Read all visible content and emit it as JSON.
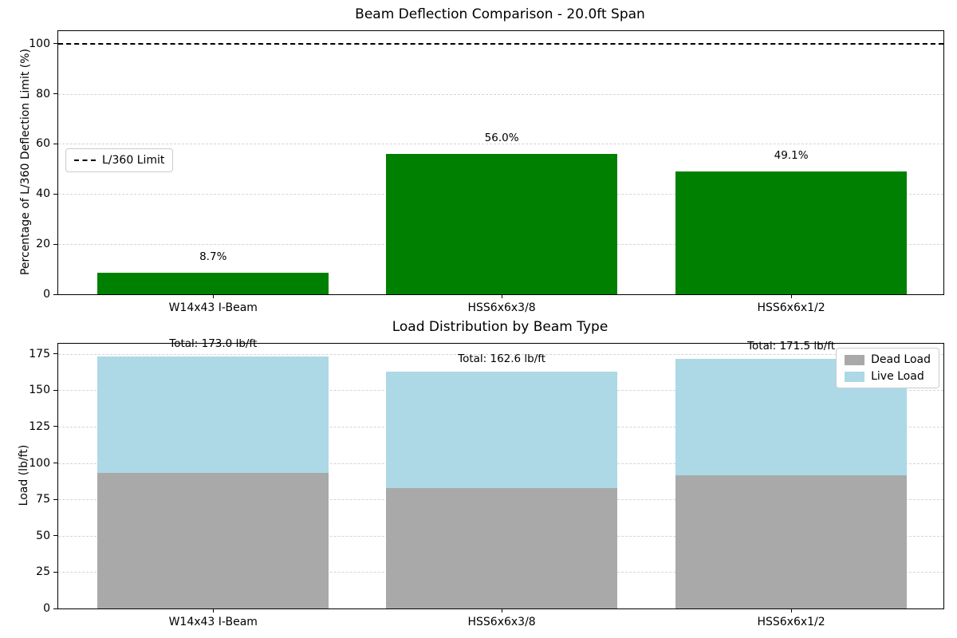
{
  "figure": {
    "background": "#ffffff"
  },
  "chart_data": [
    {
      "type": "bar",
      "title": "Beam Deflection Comparison - 20.0ft Span",
      "ylabel": "Percentage of L/360 Deflection Limit (%)",
      "categories": [
        "W14x43 I-Beam",
        "HSS6x6x3/8",
        "HSS6x6x1/2"
      ],
      "values": [
        8.7,
        56.0,
        49.1
      ],
      "bar_labels": [
        "8.7%",
        "56.0%",
        "49.1%"
      ],
      "bar_color": "#008000",
      "yticks": [
        0,
        20,
        40,
        60,
        80,
        100
      ],
      "ylim": [
        0,
        105
      ],
      "grid": "horizontal-dashed",
      "reference_line": {
        "value": 100,
        "style": "dashed",
        "color": "#000000"
      },
      "legend": {
        "position": "center-left",
        "entries": [
          {
            "label": "L/360 Limit",
            "marker": "dashed-line",
            "color": "#000000"
          }
        ]
      }
    },
    {
      "type": "stacked-bar",
      "title": "Load Distribution by Beam Type",
      "ylabel": "Load (lb/ft)",
      "categories": [
        "W14x43 I-Beam",
        "HSS6x6x3/8",
        "HSS6x6x1/2"
      ],
      "series": [
        {
          "name": "Dead Load",
          "color": "#a9a9a9",
          "values": [
            93.0,
            82.6,
            91.5
          ]
        },
        {
          "name": "Live Load",
          "color": "#add8e6",
          "values": [
            80.0,
            80.0,
            80.0
          ]
        }
      ],
      "totals": [
        173.0,
        162.6,
        171.5
      ],
      "total_labels": [
        "Total: 173.0 lb/ft",
        "Total: 162.6 lb/ft",
        "Total: 171.5 lb/ft"
      ],
      "yticks": [
        0,
        25,
        50,
        75,
        100,
        125,
        150,
        175
      ],
      "ylim": [
        0,
        182
      ],
      "grid": "horizontal-dashed",
      "legend": {
        "position": "top-right",
        "entries": [
          {
            "label": "Dead Load",
            "marker": "patch",
            "color": "#a9a9a9"
          },
          {
            "label": "Live Load",
            "marker": "patch",
            "color": "#add8e6"
          }
        ]
      }
    }
  ]
}
